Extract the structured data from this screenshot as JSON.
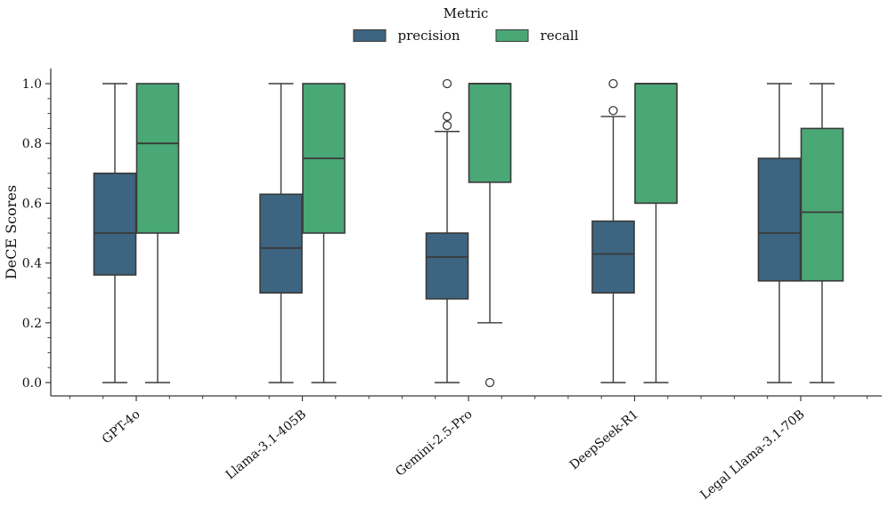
{
  "chart_data": {
    "type": "boxplot",
    "title": "",
    "legend_title": "Metric",
    "legend_position": "top-center",
    "ylabel": "DeCE Scores",
    "xlabel": "",
    "ylim": [
      0,
      1
    ],
    "y_ticks": [
      0.0,
      0.2,
      0.4,
      0.6,
      0.8,
      1.0
    ],
    "y_minor_step": 0.05,
    "grid": false,
    "edge_color": "#3a3a3a",
    "background": "#ffffff",
    "categories": [
      "GPT-4o",
      "Llama-3.1-405B",
      "Gemini-2.5-Pro",
      "DeepSeek-R1",
      "Legal Llama-3.1-70B"
    ],
    "series": [
      {
        "name": "precision",
        "color": "#3d6480",
        "boxes": [
          {
            "whislo": 0.0,
            "q1": 0.36,
            "med": 0.5,
            "q3": 0.7,
            "whishi": 1.0,
            "outliers": []
          },
          {
            "whislo": 0.0,
            "q1": 0.3,
            "med": 0.45,
            "q3": 0.63,
            "whishi": 1.0,
            "outliers": []
          },
          {
            "whislo": 0.0,
            "q1": 0.28,
            "med": 0.42,
            "q3": 0.5,
            "whishi": 0.84,
            "outliers": [
              0.86,
              0.89,
              1.0
            ]
          },
          {
            "whislo": 0.0,
            "q1": 0.3,
            "med": 0.43,
            "q3": 0.54,
            "whishi": 0.89,
            "outliers": [
              0.91,
              1.0
            ]
          },
          {
            "whislo": 0.0,
            "q1": 0.34,
            "med": 0.5,
            "q3": 0.75,
            "whishi": 1.0,
            "outliers": []
          }
        ]
      },
      {
        "name": "recall",
        "color": "#4aa776",
        "boxes": [
          {
            "whislo": 0.0,
            "q1": 0.5,
            "med": 0.8,
            "q3": 1.0,
            "whishi": 1.0,
            "outliers": []
          },
          {
            "whislo": 0.0,
            "q1": 0.5,
            "med": 0.75,
            "q3": 1.0,
            "whishi": 1.0,
            "outliers": []
          },
          {
            "whislo": 0.2,
            "q1": 0.67,
            "med": 1.0,
            "q3": 1.0,
            "whishi": 1.0,
            "outliers": [
              0.0
            ]
          },
          {
            "whislo": 0.0,
            "q1": 0.6,
            "med": 1.0,
            "q3": 1.0,
            "whishi": 1.0,
            "outliers": []
          },
          {
            "whislo": 0.0,
            "q1": 0.34,
            "med": 0.57,
            "q3": 0.85,
            "whishi": 1.0,
            "outliers": []
          }
        ]
      }
    ]
  }
}
